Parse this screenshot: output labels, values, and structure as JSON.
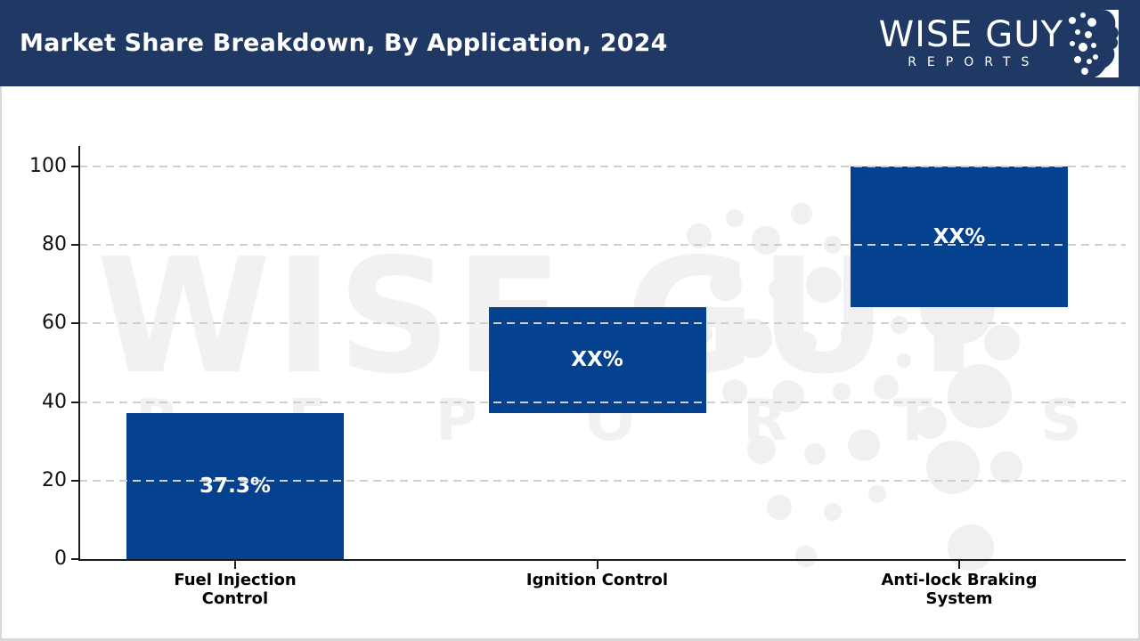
{
  "header": {
    "title": "Market Share Breakdown, By Application, 2024",
    "bg_color": "#1f3864",
    "logo": {
      "line1": "WISE GUY",
      "line2": "REPORTS"
    }
  },
  "watermark": {
    "line1": "WISE GUY",
    "line2": "REPORTS"
  },
  "chart_data": {
    "type": "bar",
    "subtype": "waterfall",
    "title": "Market Share Breakdown, By Application, 2024",
    "categories": [
      "Fuel Injection Control",
      "Ignition Control",
      "Anti-lock Braking System"
    ],
    "category_lines": [
      [
        "Fuel Injection",
        "Control"
      ],
      [
        "Ignition Control"
      ],
      [
        "Anti-lock Braking",
        "System"
      ]
    ],
    "segments": [
      {
        "category": "Fuel Injection Control",
        "start": 0,
        "end": 37.3,
        "label": "37.3%"
      },
      {
        "category": "Ignition Control",
        "start": 37.3,
        "end": 64.2,
        "label": "XX%"
      },
      {
        "category": "Anti-lock Braking System",
        "start": 64.2,
        "end": 100,
        "label": "XX%"
      }
    ],
    "yticks": [
      0,
      20,
      40,
      60,
      80,
      100
    ],
    "ylim": [
      0,
      105
    ],
    "xlabel": "",
    "ylabel": "",
    "bar_color": "#04428f",
    "grid": "horizontal-dashed",
    "grid_color": "#cfcfcf",
    "legend_position": "none"
  }
}
